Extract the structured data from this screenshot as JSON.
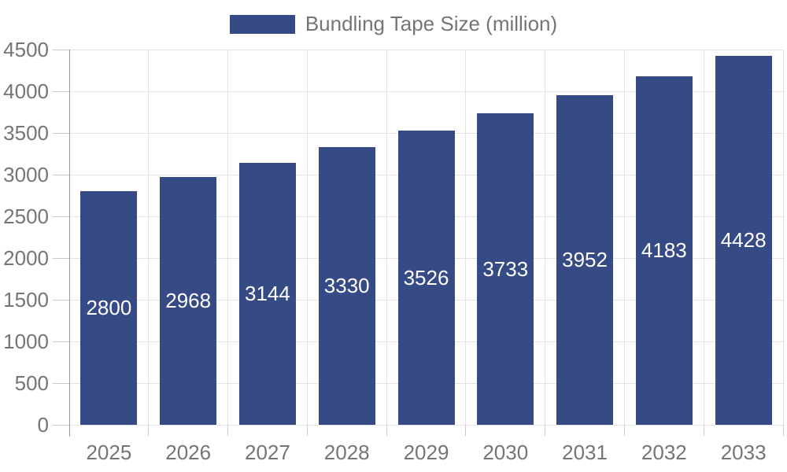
{
  "chart_data": {
    "type": "bar",
    "title": "Bundling Tape Size (million)",
    "legend": {
      "label": "Bundling Tape Size (million)",
      "position": "top-center"
    },
    "categories": [
      "2025",
      "2026",
      "2027",
      "2028",
      "2029",
      "2030",
      "2031",
      "2032",
      "2033"
    ],
    "values": [
      2800,
      2968,
      3144,
      3330,
      3526,
      3733,
      3952,
      4183,
      4428
    ],
    "series": [
      {
        "name": "Bundling Tape Size (million)",
        "values": [
          2800,
          2968,
          3144,
          3330,
          3526,
          3733,
          3952,
          4183,
          4428
        ]
      }
    ],
    "xlabel": "",
    "ylabel": "",
    "ylim": [
      0,
      4500
    ],
    "y_ticks": [
      "0",
      "500",
      "1000",
      "1500",
      "2000",
      "2500",
      "3000",
      "3500",
      "4000",
      "4500"
    ],
    "grid": true,
    "value_labels": "inside-center",
    "colors": {
      "bar": "#364a85",
      "bar_value_text": "#ffffff",
      "axis_text": "#757575",
      "grid_line": "#e3e3e3",
      "tick_line": "#c9c9c9",
      "axis_line": "#999999",
      "background": "#ffffff"
    }
  }
}
